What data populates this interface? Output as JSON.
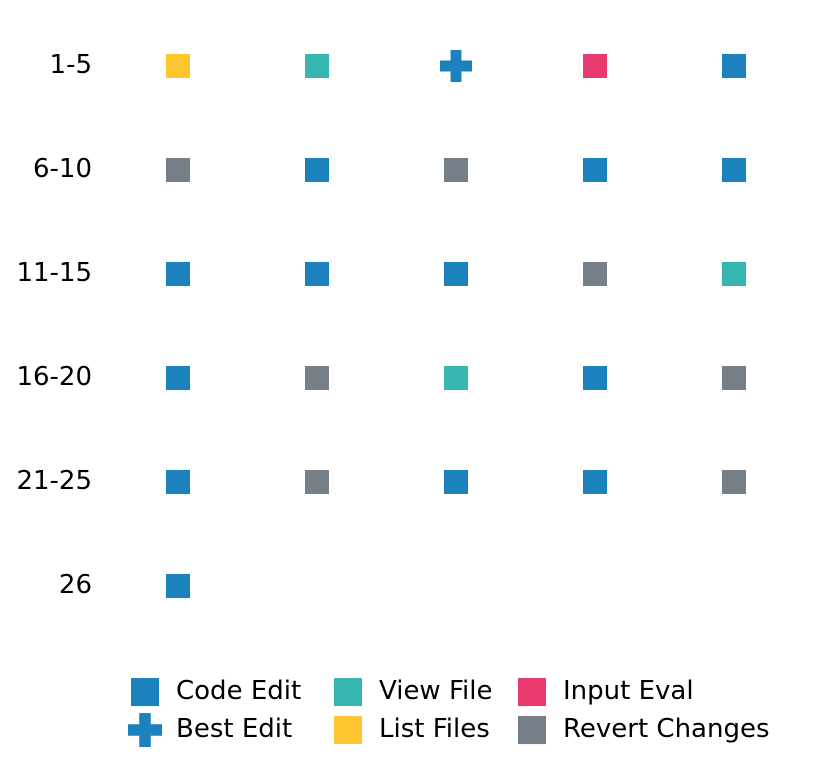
{
  "chart_data": {
    "type": "scatter",
    "title": "",
    "xlabel": "",
    "ylabel": "",
    "grid_lines": false,
    "legend_position": "bottom",
    "background_color": "#FFFFFF",
    "text_color": "#000000",
    "rows": [
      "1-5",
      "6-10",
      "11-15",
      "16-20",
      "21-25",
      "26"
    ],
    "columns_per_row": [
      5,
      5,
      5,
      5,
      5,
      1
    ],
    "grid": [
      [
        "List Files",
        "View File",
        "Best Edit",
        "Input Eval",
        "Code Edit"
      ],
      [
        "Revert Changes",
        "Code Edit",
        "Revert Changes",
        "Code Edit",
        "Code Edit"
      ],
      [
        "Code Edit",
        "Code Edit",
        "Code Edit",
        "Revert Changes",
        "View File"
      ],
      [
        "Code Edit",
        "Revert Changes",
        "View File",
        "Code Edit",
        "Revert Changes"
      ],
      [
        "Code Edit",
        "Revert Changes",
        "Code Edit",
        "Code Edit",
        "Revert Changes"
      ],
      [
        "Code Edit"
      ]
    ],
    "legend": [
      {
        "label": "Code Edit",
        "marker": "square",
        "color": "#1C82BD"
      },
      {
        "label": "View File",
        "marker": "square",
        "color": "#37B6AF"
      },
      {
        "label": "Input Eval",
        "marker": "square",
        "color": "#E93A6F"
      },
      {
        "label": "Best Edit",
        "marker": "plus",
        "color": "#1C82BD"
      },
      {
        "label": "List Files",
        "marker": "square",
        "color": "#FEC62E"
      },
      {
        "label": "Revert Changes",
        "marker": "square",
        "color": "#767E87"
      }
    ]
  }
}
